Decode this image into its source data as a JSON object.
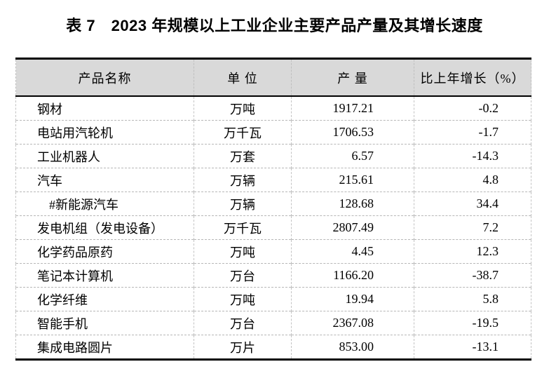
{
  "title": "表 7　2023 年规模以上工业企业主要产品产量及其增长速度",
  "colors": {
    "header_bg": "#d9d9d9",
    "heavy_rule": "#000000",
    "row_divider": "#b7b7b7",
    "column_divider": "#c3c3c3",
    "text": "#000000",
    "page_bg": "#ffffff"
  },
  "table": {
    "columns": [
      "产品名称",
      "单 位",
      "产 量",
      "比上年增长（%）"
    ],
    "rows": [
      {
        "name": "钢材",
        "unit": "万吨",
        "output": "1917.21",
        "growth": "-0.2"
      },
      {
        "name": "电站用汽轮机",
        "unit": "万千瓦",
        "output": "1706.53",
        "growth": "-1.7"
      },
      {
        "name": "工业机器人",
        "unit": "万套",
        "output": "6.57",
        "growth": "-14.3"
      },
      {
        "name": "汽车",
        "unit": "万辆",
        "output": "215.61",
        "growth": "4.8"
      },
      {
        "name": "#新能源汽车",
        "unit": "万辆",
        "output": "128.68",
        "growth": "34.4",
        "indent": true
      },
      {
        "name": "发电机组（发电设备）",
        "unit": "万千瓦",
        "output": "2807.49",
        "growth": "7.2"
      },
      {
        "name": "化学药品原药",
        "unit": "万吨",
        "output": "4.45",
        "growth": "12.3"
      },
      {
        "name": "笔记本计算机",
        "unit": "万台",
        "output": "1166.20",
        "growth": "-38.7"
      },
      {
        "name": "化学纤维",
        "unit": "万吨",
        "output": "19.94",
        "growth": "5.8"
      },
      {
        "name": "智能手机",
        "unit": "万台",
        "output": "2367.08",
        "growth": "-19.5"
      },
      {
        "name": "集成电路圆片",
        "unit": "万片",
        "output": "853.00",
        "growth": "-13.1"
      }
    ]
  }
}
